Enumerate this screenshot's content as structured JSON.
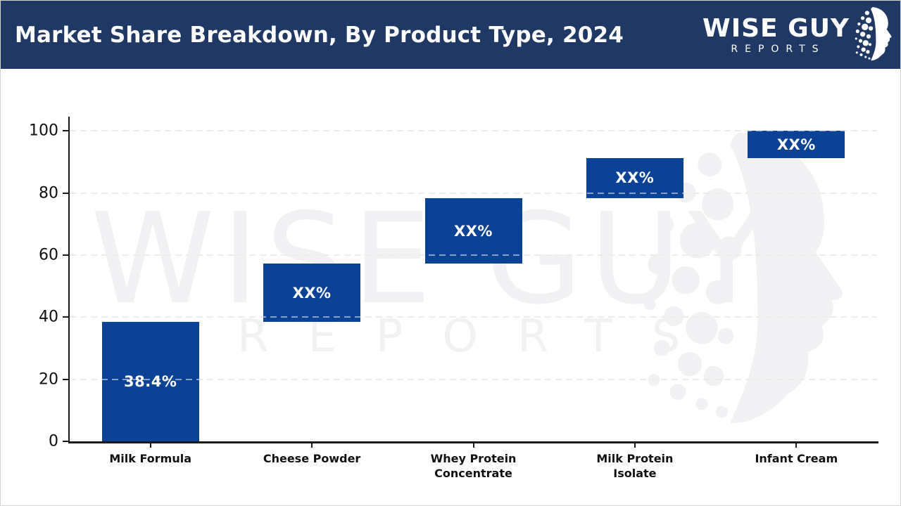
{
  "header": {
    "title": "Market Share Breakdown, By Product Type, 2024",
    "bg_color": "#1f3864",
    "logo": {
      "line1": "WISE GUY",
      "line2": "REPORTS"
    }
  },
  "watermark": {
    "line1": "WISE GUY",
    "line2": "REPORTS"
  },
  "chart_data": {
    "type": "bar",
    "subtype": "waterfall",
    "title": "Market Share Breakdown, By Product Type, 2024",
    "categories": [
      "Milk Formula",
      "Cheese Powder",
      "Whey Protein Concentrate",
      "Milk Protein Isolate",
      "Infant Cream"
    ],
    "segments": [
      {
        "category": "Milk Formula",
        "start": 0,
        "end": 38.4,
        "label": "38.4%"
      },
      {
        "category": "Cheese Powder",
        "start": 38.4,
        "end": 57.2,
        "label": "XX%"
      },
      {
        "category": "Whey Protein Concentrate",
        "start": 57.2,
        "end": 78.4,
        "label": "XX%"
      },
      {
        "category": "Milk Protein Isolate",
        "start": 78.4,
        "end": 91.2,
        "label": "XX%"
      },
      {
        "category": "Infant Cream",
        "start": 91.2,
        "end": 100,
        "label": "XX%"
      }
    ],
    "yticks": [
      0,
      20,
      40,
      60,
      80,
      100
    ],
    "ylim": [
      0,
      104.6
    ],
    "xlabel": "",
    "ylabel": "",
    "grid": "horizontal-dashed",
    "legend": "none",
    "bar_color": "#0b4295",
    "bar_label_color": "#ffffff",
    "axis_color": "#1a1a1a",
    "grid_color": "#d8d8d8"
  }
}
